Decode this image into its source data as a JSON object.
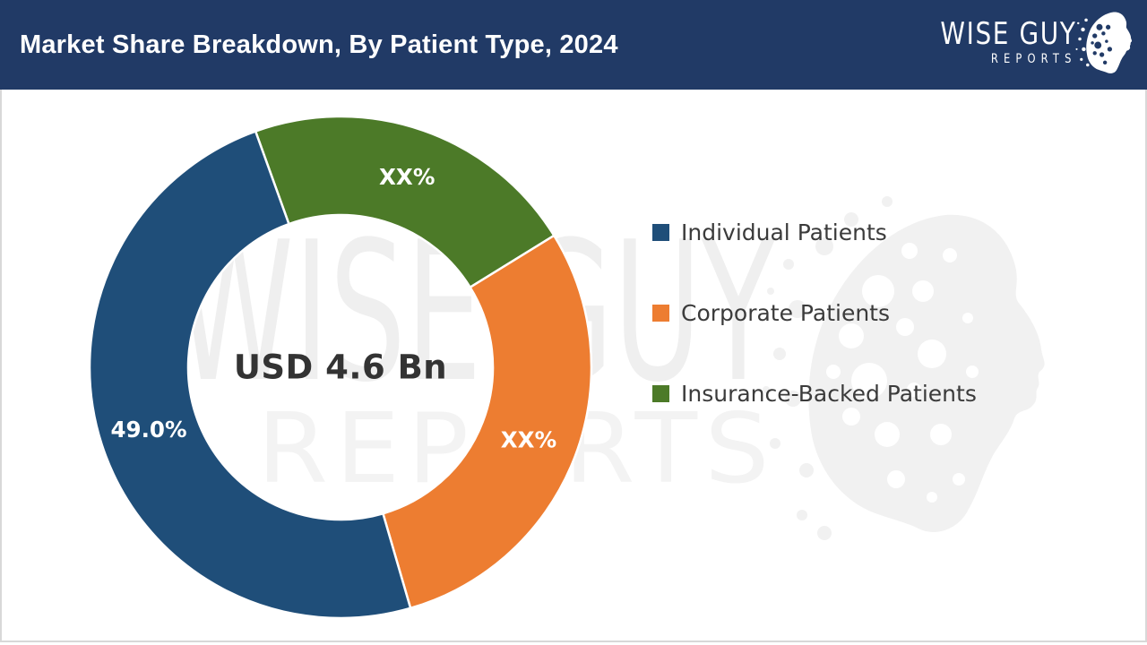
{
  "header": {
    "title": "Market Share Breakdown, By Patient Type, 2024",
    "logo": {
      "line1": "WISE GUY",
      "line2": "REPORTS"
    }
  },
  "watermark": {
    "line1": "WISE GUY",
    "line2": "REPORTS"
  },
  "legend": {
    "items": [
      {
        "label": "Individual Patients",
        "color": "#1F4E79"
      },
      {
        "label": "Corporate Patients",
        "color": "#ED7D31"
      },
      {
        "label": "Insurance-Backed Patients",
        "color": "#4C7A28"
      }
    ]
  },
  "chart_data": {
    "type": "pie",
    "subtype": "donut",
    "title": "Market Share Breakdown, By Patient Type, 2024",
    "center_label": "USD 4.6 Bn",
    "legend_position": "right",
    "direction": "clockwise",
    "start_angle_deg": -19.8,
    "donut_hole_ratio": 0.61,
    "note": "Only the Individual Patients share is labeled (49.0%); the other two slice labels are masked as XX% — their values below are estimated from arc angles.",
    "segments": [
      {
        "name": "Insurance-Backed Patients",
        "value": 21.7,
        "display_label": "XX%",
        "color": "#4C7A28"
      },
      {
        "name": "Corporate Patients",
        "value": 29.3,
        "display_label": "XX%",
        "color": "#ED7D31"
      },
      {
        "name": "Individual Patients",
        "value": 49.0,
        "display_label": "49.0%",
        "color": "#1F4E79"
      }
    ]
  },
  "colors": {
    "header_bg": "#213A66",
    "content_border": "#D8D8D8",
    "legend_text": "#3B3B3B",
    "center_text": "#333333",
    "watermark_text": "#EFEFEF",
    "watermark_face": "#F1F1F1"
  }
}
